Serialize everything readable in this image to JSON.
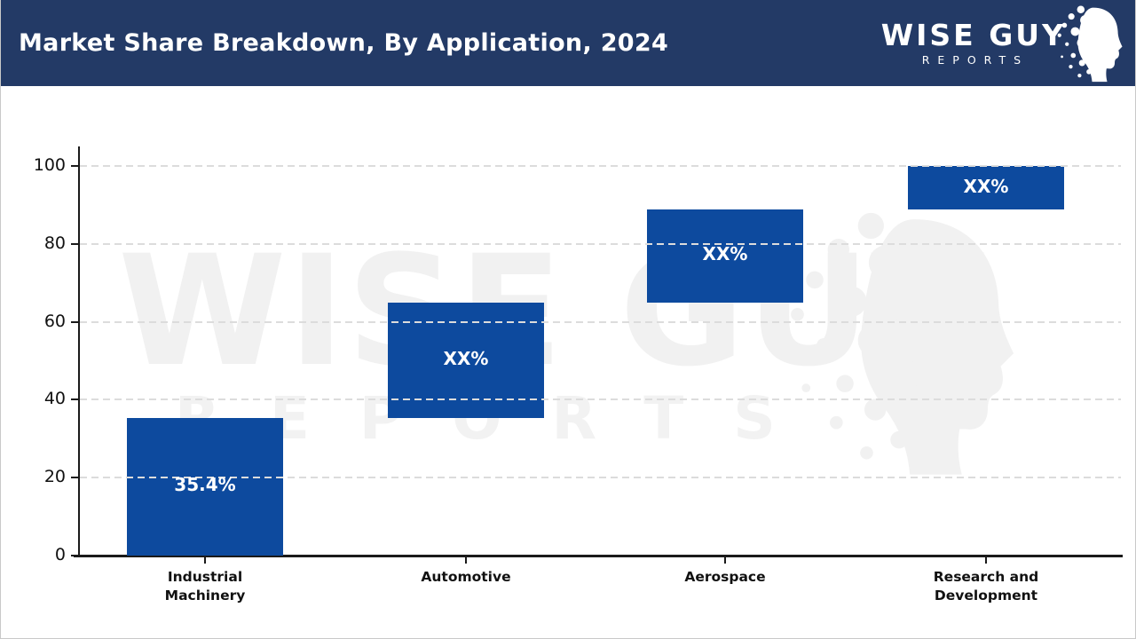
{
  "header": {
    "title": "Market Share Breakdown, By Application, 2024",
    "logo": {
      "line1": "WISE GUY",
      "line2": "REPORTS"
    }
  },
  "watermark": {
    "line1": "WISE GUY",
    "line2": "REPORTS"
  },
  "chart_data": {
    "type": "bar",
    "subtype": "waterfall",
    "title": "Market Share Breakdown, By Application, 2024",
    "categories": [
      "Industrial Machinery",
      "Automotive",
      "Aerospace",
      "Research and Development"
    ],
    "segments": [
      {
        "category": "Industrial Machinery",
        "start": 0,
        "end": 35.4,
        "value": 35.4,
        "label": "35.4%"
      },
      {
        "category": "Automotive",
        "start": 35.4,
        "end": 65.0,
        "value": 29.6,
        "label": "XX%"
      },
      {
        "category": "Aerospace",
        "start": 65.0,
        "end": 88.8,
        "value": 23.8,
        "label": "XX%"
      },
      {
        "category": "Research and Development",
        "start": 88.8,
        "end": 100,
        "value": 11.2,
        "label": "XX%"
      }
    ],
    "y_ticks": [
      0,
      20,
      40,
      60,
      80,
      100
    ],
    "ylim": [
      0,
      105
    ],
    "xlabel": "",
    "ylabel": "",
    "grid": "horizontal-dashed",
    "legend": "none",
    "colors": {
      "bar": "#0d4a9e",
      "bar_label": "#ffffff",
      "grid": "#dcdcdc",
      "axis": "#1a1a1a"
    }
  },
  "colors": {
    "header_bg": "#233a66",
    "watermark": "#f1f1f1"
  }
}
